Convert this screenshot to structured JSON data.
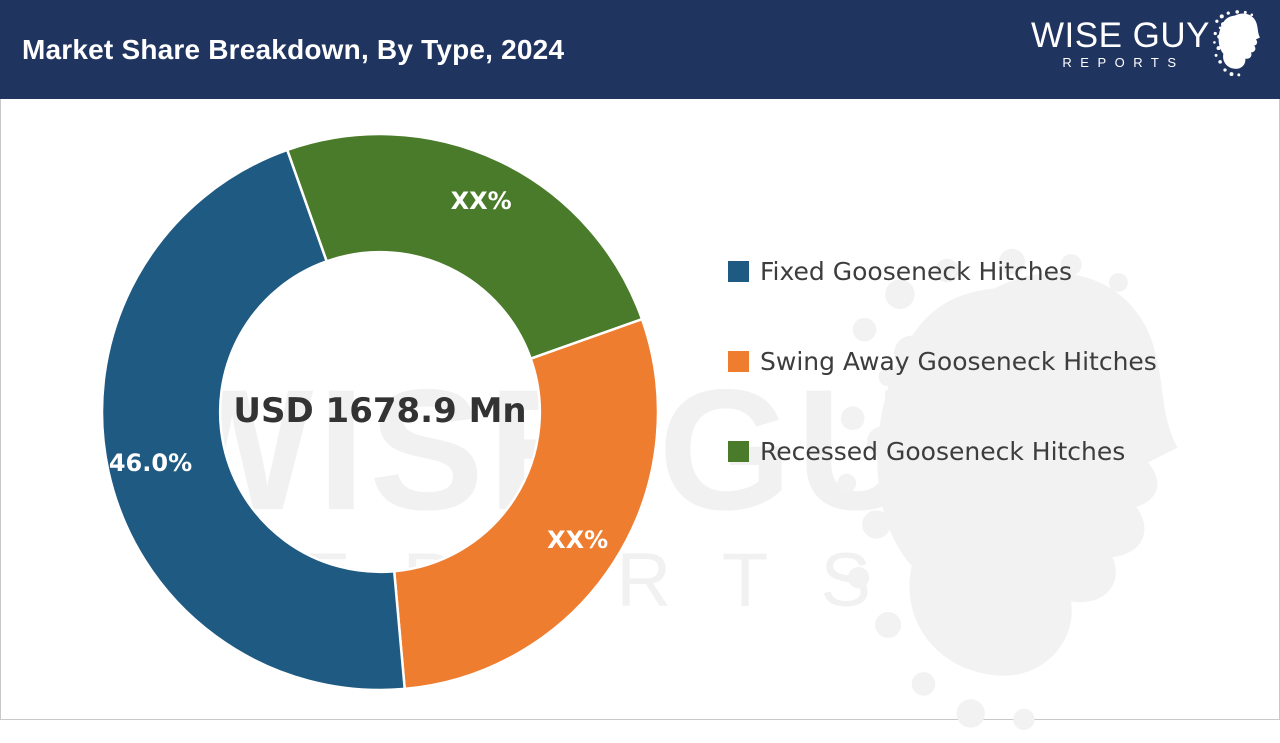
{
  "header": {
    "title": "Market Share Breakdown, By Type, 2024",
    "logo": {
      "wordmark": "WISE GUY",
      "subtitle": "REPORTS"
    }
  },
  "watermark": {
    "wordmark": "WISE GUY",
    "subtitle": "REPORTS"
  },
  "legend": {
    "items": [
      {
        "label": "Fixed Gooseneck Hitches",
        "color": "#1f5a82"
      },
      {
        "label": "Swing Away Gooseneck Hitches",
        "color": "#ee7d30"
      },
      {
        "label": "Recessed Gooseneck Hitches",
        "color": "#4a7b2a"
      }
    ]
  },
  "chart_data": {
    "type": "donut",
    "title": "Market Share Breakdown, By Type, 2024",
    "center_label": "USD 1678.9 Mn",
    "start_angle_deg": -19.5,
    "clockwise": true,
    "inner_radius_ratio": 0.575,
    "label_radius_ratio": 0.845,
    "slices": [
      {
        "label": "Recessed Gooseneck Hitches",
        "value_pct": 25.0,
        "display_label": "XX%",
        "color": "#4a7b2a"
      },
      {
        "label": "Swing Away Gooseneck Hitches",
        "value_pct": 29.0,
        "display_label": "XX%",
        "color": "#ee7d30"
      },
      {
        "label": "Fixed Gooseneck Hitches",
        "value_pct": 46.0,
        "display_label": "46.0%",
        "color": "#1f5a82"
      }
    ]
  },
  "colors": {
    "header_bg": "#203460",
    "accent_blue": "#1f5a82",
    "accent_orange": "#ee7d30",
    "accent_green": "#4a7b2a",
    "frame_border": "#c9c9c9",
    "center_text": "#333333",
    "legend_text": "#3d3d3d",
    "watermark": "#f1f1f1",
    "slice_divider": "#ffffff"
  }
}
